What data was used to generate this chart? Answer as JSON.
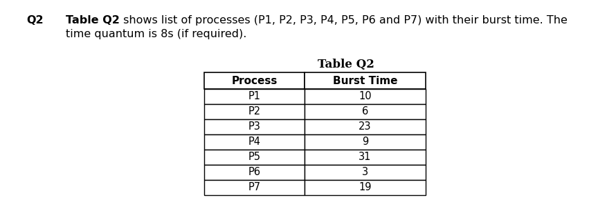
{
  "q_label": "Q2",
  "question_bold_part": "Table Q2",
  "question_text_line1_after_bold": " shows list of processes (P1, P2, P3, P4, P5, P6 and P7) with their burst time. The",
  "question_text_line2": "time quantum is 8s (if required).",
  "table_title": "Table Q2",
  "col_headers": [
    "Process",
    "Burst Time"
  ],
  "rows": [
    [
      "P1",
      "10"
    ],
    [
      "P2",
      "6"
    ],
    [
      "P3",
      "23"
    ],
    [
      "P4",
      "9"
    ],
    [
      "P5",
      "31"
    ],
    [
      "P6",
      "3"
    ],
    [
      "P7",
      "19"
    ]
  ],
  "bg_color": "#ffffff",
  "text_color": "#000000",
  "q_font_size": 11.5,
  "table_title_font_size": 12,
  "header_font_size": 11,
  "body_font_size": 10.5,
  "fig_width": 8.9,
  "fig_height": 3.06,
  "dpi": 100
}
